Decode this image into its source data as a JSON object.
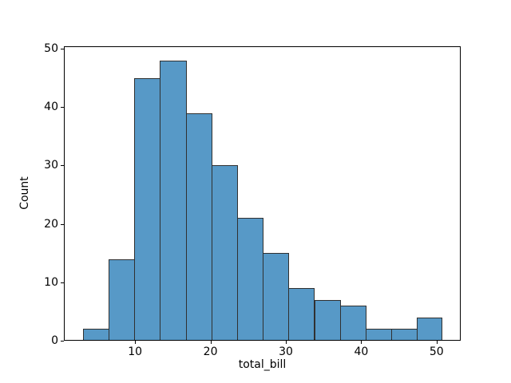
{
  "figure": {
    "background": "#ffffff"
  },
  "chart_data": {
    "type": "bar",
    "subtype": "histogram",
    "title": "",
    "xlabel": "total_bill",
    "ylabel": "Count",
    "bin_edges": [
      3.07,
      6.48,
      9.89,
      13.3,
      16.71,
      20.12,
      23.53,
      26.94,
      30.35,
      33.76,
      37.17,
      40.58,
      43.99,
      47.4,
      50.81
    ],
    "counts": [
      2,
      14,
      45,
      48,
      39,
      30,
      21,
      15,
      9,
      7,
      6,
      2,
      2,
      4
    ],
    "xlim": [
      0.55,
      53.2
    ],
    "ylim": [
      0,
      50.4
    ],
    "xticks": [
      10,
      20,
      30,
      40,
      50
    ],
    "yticks": [
      0,
      10,
      20,
      30,
      40,
      50
    ],
    "grid": false,
    "legend": null,
    "colors": {
      "bar_fill": "#5799c7",
      "bar_edge": "#303030",
      "spine": "#000000",
      "text": "#000000"
    }
  }
}
